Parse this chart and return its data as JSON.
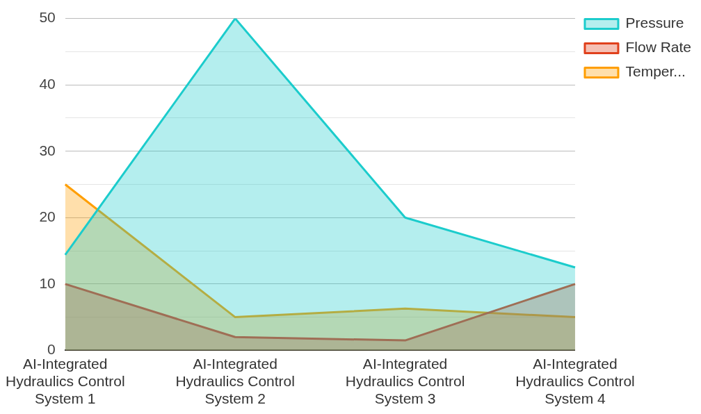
{
  "chart_data": {
    "type": "area",
    "categories": [
      "AI-Integrated Hydraulics Control System 1",
      "AI-Integrated Hydraulics Control System 2",
      "AI-Integrated Hydraulics Control System 3",
      "AI-Integrated Hydraulics Control System 4"
    ],
    "series": [
      {
        "name": "Pressure",
        "color": "#1ccccc",
        "values": [
          14.4,
          50,
          20,
          12.5
        ]
      },
      {
        "name": "Flow Rate",
        "color": "#e0401c",
        "values": [
          10,
          2,
          1.5,
          10
        ]
      },
      {
        "name": "Temper...",
        "color": "#ff9e00",
        "values": [
          25,
          5,
          6.3,
          5
        ]
      }
    ],
    "ylim": [
      0,
      50
    ],
    "yticks": [
      0,
      {
        "value": 5,
        "label": null
      },
      10,
      {
        "value": 15,
        "label": null
      },
      20,
      {
        "value": 25,
        "label": null
      },
      30,
      {
        "value": 35,
        "label": null
      },
      40,
      {
        "value": 45,
        "label": null
      },
      50
    ],
    "grid": "y",
    "legend": "top right",
    "marker": "none",
    "line_style": "solid"
  }
}
